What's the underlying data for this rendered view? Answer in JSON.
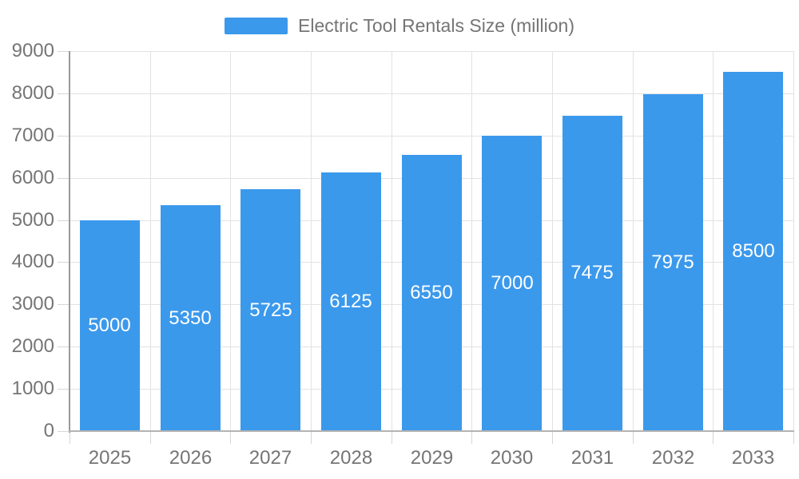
{
  "chart_data": {
    "type": "bar",
    "title": "Electric Tool Rentals Size (million)",
    "legend_position": "top",
    "categories": [
      "2025",
      "2026",
      "2027",
      "2028",
      "2029",
      "2030",
      "2031",
      "2032",
      "2033"
    ],
    "series": [
      {
        "name": "Electric Tool Rentals Size (million)",
        "values": [
          5000,
          5350,
          5725,
          6125,
          6550,
          7000,
          7475,
          7975,
          8500
        ]
      }
    ],
    "bar_value_labels": [
      "5000",
      "5350",
      "5725",
      "6125",
      "6550",
      "7000",
      "7475",
      "7975",
      "8500"
    ],
    "xlabel": "",
    "ylabel": "",
    "ylim": [
      0,
      9000
    ],
    "ytick_step": 1000,
    "y_ticks": [
      0,
      1000,
      2000,
      3000,
      4000,
      5000,
      6000,
      7000,
      8000,
      9000
    ],
    "grid": true,
    "colors": {
      "bar": "#3B99EC",
      "grid": "#E2E2E2",
      "tick": "#D6D6D6",
      "axis_y": "#999999",
      "axis_x": "#B3B3B3",
      "axis_text": "#757575",
      "legend_text": "#757575",
      "bar_label_text": "#FFFFFF",
      "background": "#FFFFFF"
    }
  }
}
